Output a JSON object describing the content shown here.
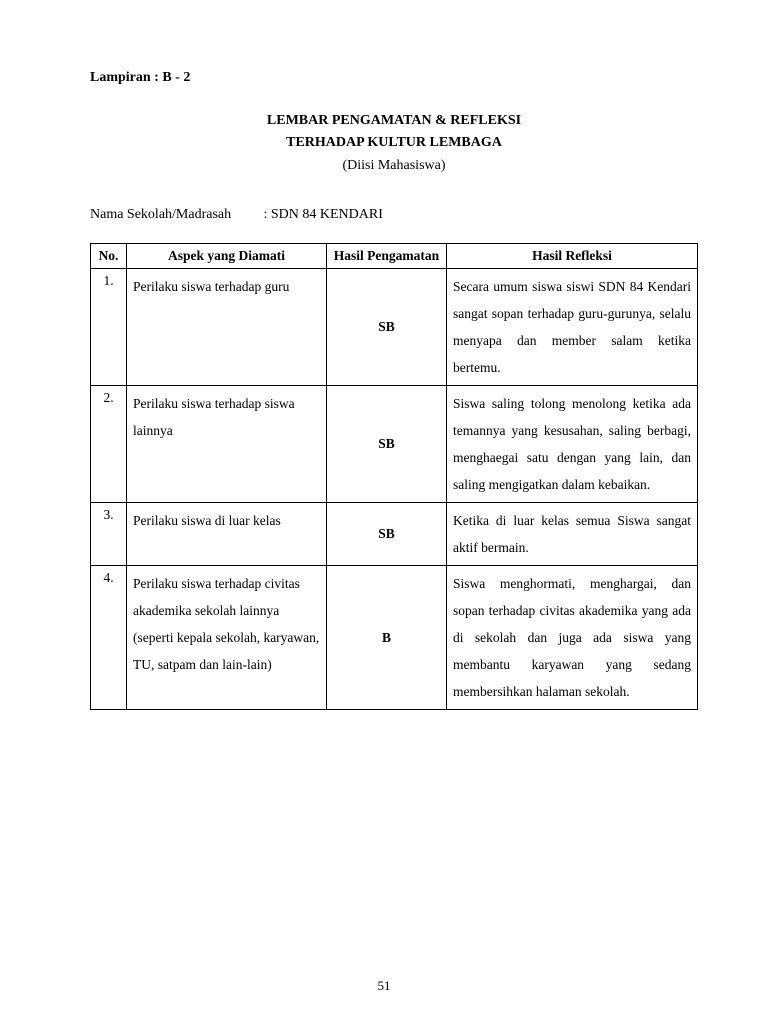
{
  "attachment_label": "Lampiran : B - 2",
  "title_line1": "LEMBAR PENGAMATAN & REFLEKSI",
  "title_line2": "TERHADAP KULTUR LEMBAGA",
  "subtitle": "(Diisi Mahasiswa)",
  "school_label": "Nama Sekolah/Madrasah",
  "school_value": ": SDN 84 KENDARI",
  "table": {
    "headers": {
      "no": "No.",
      "aspek": "Aspek yang Diamati",
      "hasil_p": "Hasil Pengamatan",
      "hasil_r": "Hasil Refleksi"
    },
    "rows": [
      {
        "no": "1.",
        "aspek": "Perilaku siswa terhadap guru",
        "hasil_p": "SB",
        "hasil_r": "Secara umum siswa siswi SDN 84 Kendari sangat sopan terhadap guru-gurunya, selalu menyapa dan member salam ketika bertemu."
      },
      {
        "no": "2.",
        "aspek": "Perilaku siswa terhadap siswa lainnya",
        "hasil_p": "SB",
        "hasil_r": "Siswa saling tolong menolong ketika ada temannya yang kesusahan, saling berbagi, menghaegai satu dengan yang lain, dan saling mengigatkan dalam kebaikan."
      },
      {
        "no": "3.",
        "aspek": "Perilaku siswa di luar kelas",
        "hasil_p": "SB",
        "hasil_r": "Ketika di luar kelas semua Siswa sangat aktif bermain."
      },
      {
        "no": "4.",
        "aspek": "Perilaku siswa terhadap civitas akademika sekolah lainnya (seperti kepala sekolah, karyawan, TU, satpam dan lain-lain)",
        "hasil_p": "B",
        "hasil_r": "Siswa menghormati, menghargai, dan sopan terhadap civitas akademika yang ada di sekolah dan juga ada siswa yang membantu karyawan yang sedang membersihkan halaman sekolah."
      }
    ]
  },
  "page_number": "51"
}
